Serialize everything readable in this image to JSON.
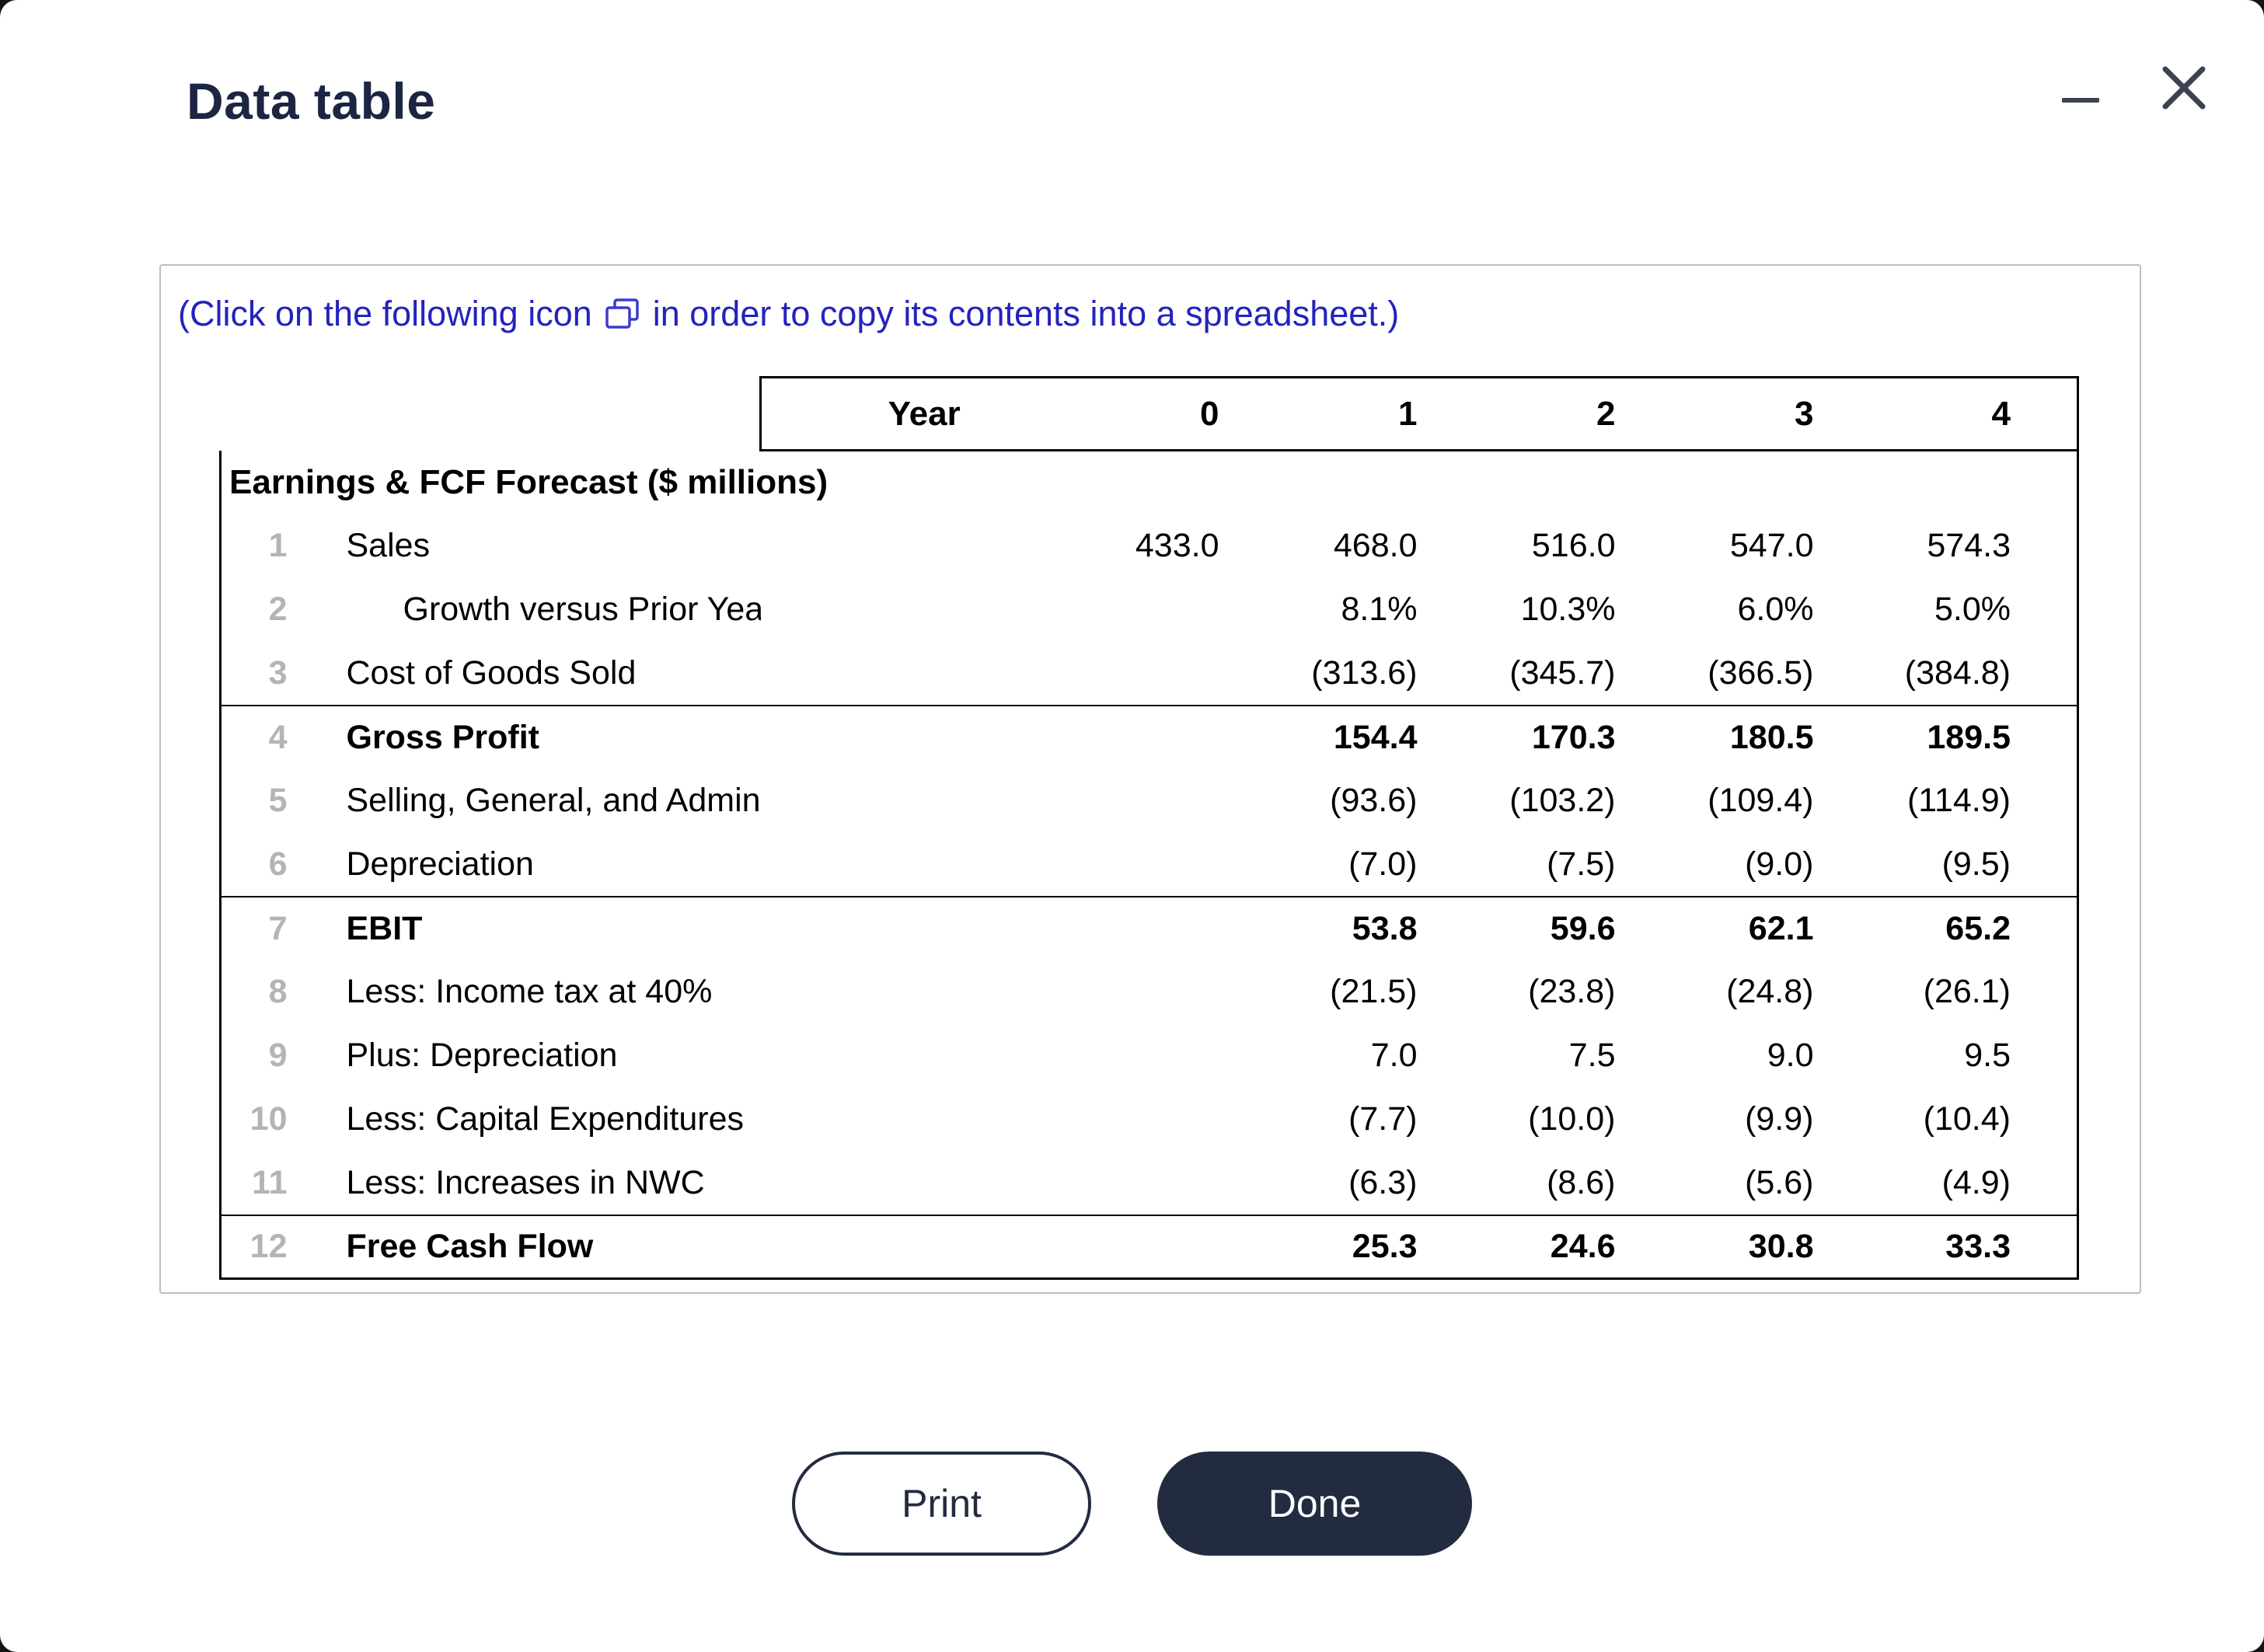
{
  "window": {
    "title": "Data table",
    "minimize_icon": "minimize-icon",
    "close_icon": "close-icon"
  },
  "panel": {
    "instruction_prefix": "(Click on the following icon",
    "instruction_suffix": "in order to copy its contents into a spreadsheet.)",
    "copy_icon": "copy-to-spreadsheet-icon"
  },
  "table": {
    "header": {
      "year_label": "Year",
      "years": [
        "0",
        "1",
        "2",
        "3",
        "4"
      ]
    },
    "section_title": "Earnings & FCF Forecast ($ millions)",
    "rows": [
      {
        "num": "1",
        "label": "Sales",
        "indent": false,
        "bold": false,
        "rule_above": false,
        "values": [
          "433.0",
          "468.0",
          "516.0",
          "547.0",
          "574.3"
        ]
      },
      {
        "num": "2",
        "label": "Growth versus Prior Year",
        "indent": true,
        "bold": false,
        "rule_above": false,
        "values": [
          "",
          "8.1%",
          "10.3%",
          "6.0%",
          "5.0%"
        ]
      },
      {
        "num": "3",
        "label": "Cost of Goods Sold",
        "indent": false,
        "bold": false,
        "rule_above": false,
        "values": [
          "",
          "(313.6)",
          "(345.7)",
          "(366.5)",
          "(384.8)"
        ]
      },
      {
        "num": "4",
        "label": "Gross Profit",
        "indent": false,
        "bold": true,
        "rule_above": true,
        "values": [
          "",
          "154.4",
          "170.3",
          "180.5",
          "189.5"
        ]
      },
      {
        "num": "5",
        "label": "Selling, General, and Administrative",
        "indent": false,
        "bold": false,
        "rule_above": false,
        "values": [
          "",
          "(93.6)",
          "(103.2)",
          "(109.4)",
          "(114.9)"
        ]
      },
      {
        "num": "6",
        "label": "Depreciation",
        "indent": false,
        "bold": false,
        "rule_above": false,
        "values": [
          "",
          "(7.0)",
          "(7.5)",
          "(9.0)",
          "(9.5)"
        ]
      },
      {
        "num": "7",
        "label": "EBIT",
        "indent": false,
        "bold": true,
        "rule_above": true,
        "values": [
          "",
          "53.8",
          "59.6",
          "62.1",
          "65.2"
        ]
      },
      {
        "num": "8",
        "label": "Less: Income tax at 40%",
        "indent": false,
        "bold": false,
        "rule_above": false,
        "values": [
          "",
          "(21.5)",
          "(23.8)",
          "(24.8)",
          "(26.1)"
        ]
      },
      {
        "num": "9",
        "label": "Plus: Depreciation",
        "indent": false,
        "bold": false,
        "rule_above": false,
        "values": [
          "",
          "7.0",
          "7.5",
          "9.0",
          "9.5"
        ]
      },
      {
        "num": "10",
        "label": "Less: Capital Expenditures",
        "indent": false,
        "bold": false,
        "rule_above": false,
        "values": [
          "",
          "(7.7)",
          "(10.0)",
          "(9.9)",
          "(10.4)"
        ]
      },
      {
        "num": "11",
        "label": "Less: Increases in NWC",
        "indent": false,
        "bold": false,
        "rule_above": false,
        "values": [
          "",
          "(6.3)",
          "(8.6)",
          "(5.6)",
          "(4.9)"
        ]
      },
      {
        "num": "12",
        "label": "Free Cash Flow",
        "indent": false,
        "bold": true,
        "rule_above": true,
        "values": [
          "",
          "25.3",
          "24.6",
          "30.8",
          "33.3"
        ]
      }
    ]
  },
  "buttons": {
    "print": "Print",
    "done": "Done"
  },
  "colors": {
    "title_navy": "#1c2642",
    "instruction_blue": "#2323bd",
    "row_number_gray": "#b4b4b4",
    "done_button_bg": "#222b40",
    "table_border": "#000000",
    "panel_border": "#bdbdbd"
  }
}
